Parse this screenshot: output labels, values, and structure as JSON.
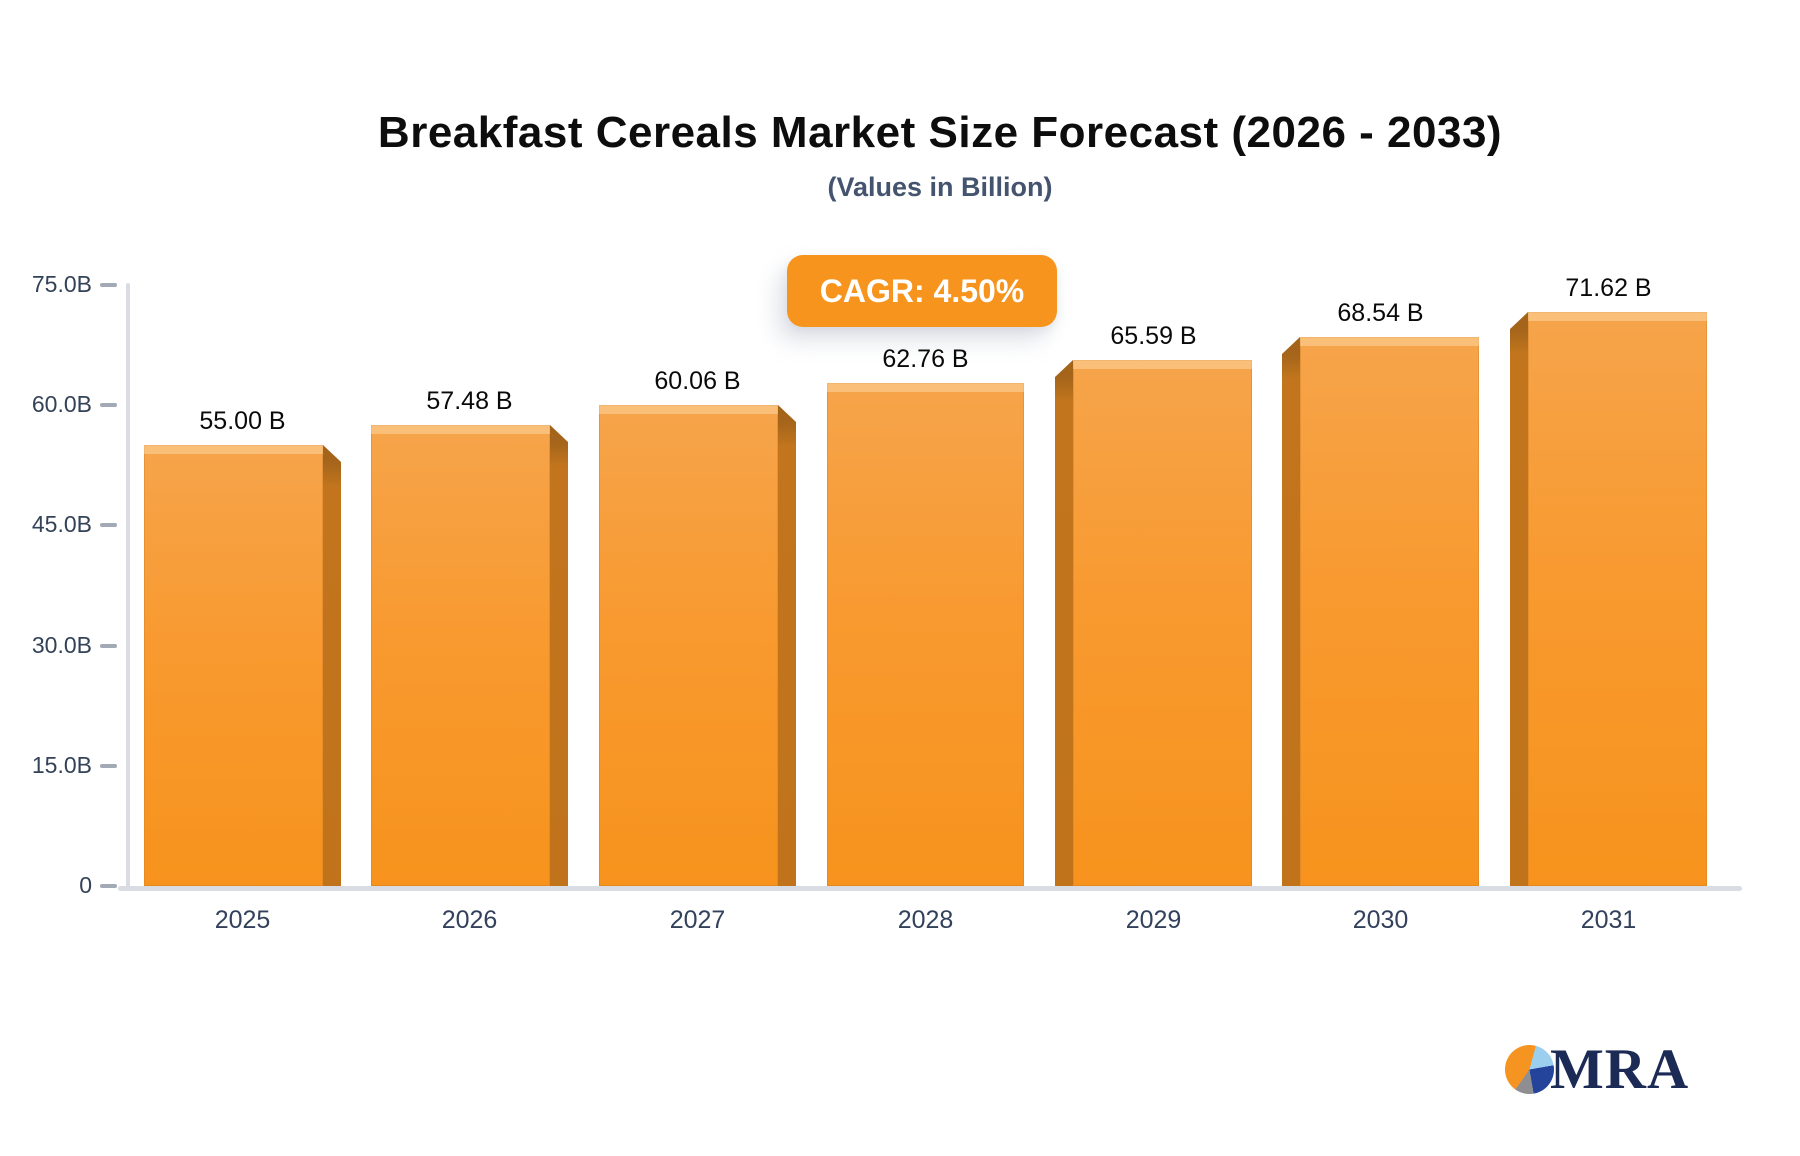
{
  "title": "Breakfast Cereals Market Size Forecast (2026 - 2033)",
  "subtitle": "(Values in Billion)",
  "badge": {
    "label": "CAGR: 4.50%",
    "bg_color": "#F7941E",
    "text_color": "#FFFFFF"
  },
  "chart_data": {
    "type": "bar",
    "categories": [
      "2025",
      "2026",
      "2027",
      "2028",
      "2029",
      "2030",
      "2031"
    ],
    "values": [
      55.0,
      57.48,
      60.06,
      62.76,
      65.59,
      68.54,
      71.62
    ],
    "value_labels": [
      "55.00 B",
      "57.48 B",
      "60.06 B",
      "62.76 B",
      "65.59 B",
      "68.54 B",
      "71.62 B"
    ],
    "title": "Breakfast Cereals Market Size Forecast (2026 - 2033)",
    "subtitle": "(Values in Billion)",
    "xlabel": "",
    "ylabel": "",
    "ylim": [
      0,
      75
    ],
    "ytick_values": [
      75,
      60,
      45,
      30,
      15,
      0
    ],
    "ytick_labels": [
      "75.0B",
      "60.0B",
      "45.0B",
      "30.0B",
      "15.0B",
      "0"
    ],
    "grid": false,
    "legend": false,
    "annotation": "CAGR: 4.50%",
    "bar_color_top": "#F6A44B",
    "bar_color_bottom": "#F7931D",
    "bar_side_color": "#C0731B"
  },
  "logo": {
    "text": "MRA",
    "pie_colors": [
      "#F59421",
      "#9CCFEE",
      "#24439B",
      "#8E8E93"
    ],
    "text_color": "#1C2A56"
  }
}
